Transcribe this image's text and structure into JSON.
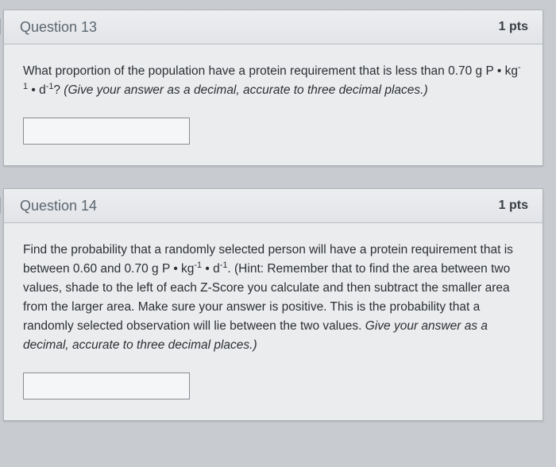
{
  "questions": [
    {
      "number_label": "Question 13",
      "points_label": "1 pts",
      "body_html": "What proportion of the population have a protein requirement that is less than 0.70 g P • kg<sup>-1</sup> • d<sup>-1</sup>? <span class=\"hint\">(Give your answer as a decimal, accurate to three decimal places.)</span>",
      "input_value": ""
    },
    {
      "number_label": "Question 14",
      "points_label": "1 pts",
      "body_html": "Find the probability that a randomly selected person will have a protein requirement that is between 0.60 and 0.70 g P • kg<sup>-1</sup> • d<sup>-1</sup>. (Hint: Remember that to find the area between two values, shade to the left of each Z-Score you calculate and then subtract the smaller area from the larger area. Make sure your answer is positive. This is the probability that a randomly selected observation will lie between the two values. <span class=\"hint\">Give your answer as a decimal, accurate to three decimal places.)</span>",
      "input_value": ""
    }
  ],
  "colors": {
    "page_bg": "#c8ccd0",
    "card_bg": "#ebecee",
    "header_text": "#5c6670",
    "body_text": "#2b2f33",
    "border": "#b0b4b8",
    "flag_stroke": "#98a0a8"
  }
}
